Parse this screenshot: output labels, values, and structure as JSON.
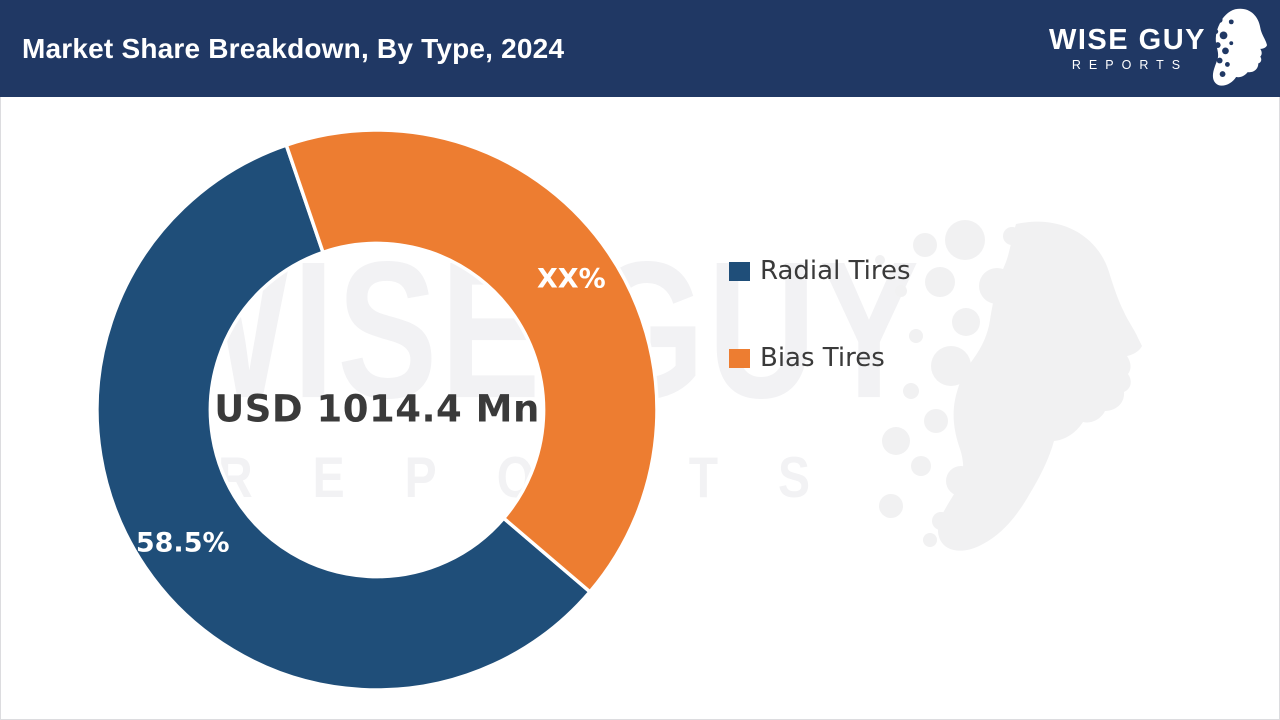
{
  "header": {
    "title": "Market Share Breakdown, By Type, 2024",
    "logo": {
      "name_line": "WISE GUY",
      "sub_line": "REPORTS"
    }
  },
  "watermark": {
    "big_text": "WISE GUY",
    "sub_text": "REPORTS"
  },
  "colors": {
    "header_bg": "#203864",
    "radial_blue": "#1F4E79",
    "bias_orange": "#ED7D31",
    "slice_separator": "#FFFFFF",
    "center_text": "#3A3A3A",
    "legend_text": "#3A3A3A",
    "watermark_gray": "#F2F2F4"
  },
  "chart_data": {
    "type": "pie",
    "subtype": "donut",
    "title": "Market Share Breakdown, By Type, 2024",
    "center_label": "USD 1014.4 Mn",
    "slices": [
      {
        "label": "Radial Tires",
        "value_pct": 58.5,
        "display_label": "58.5%",
        "color": "#1F4E79"
      },
      {
        "label": "Bias Tires",
        "value_pct": 41.5,
        "display_label": "XX%",
        "color": "#ED7D31"
      }
    ],
    "layout": {
      "start_angle_deg": 130.5,
      "direction": "clockwise",
      "inner_radius_ratio": 0.595,
      "label_radius_ratio": 0.839,
      "slice_separator_width": 3.5,
      "legend_position": "right",
      "grid": false
    }
  },
  "legend": {
    "items": [
      {
        "label": "Radial Tires",
        "color": "#1F4E79"
      },
      {
        "label": "Bias Tires",
        "color": "#ED7D31"
      }
    ]
  }
}
